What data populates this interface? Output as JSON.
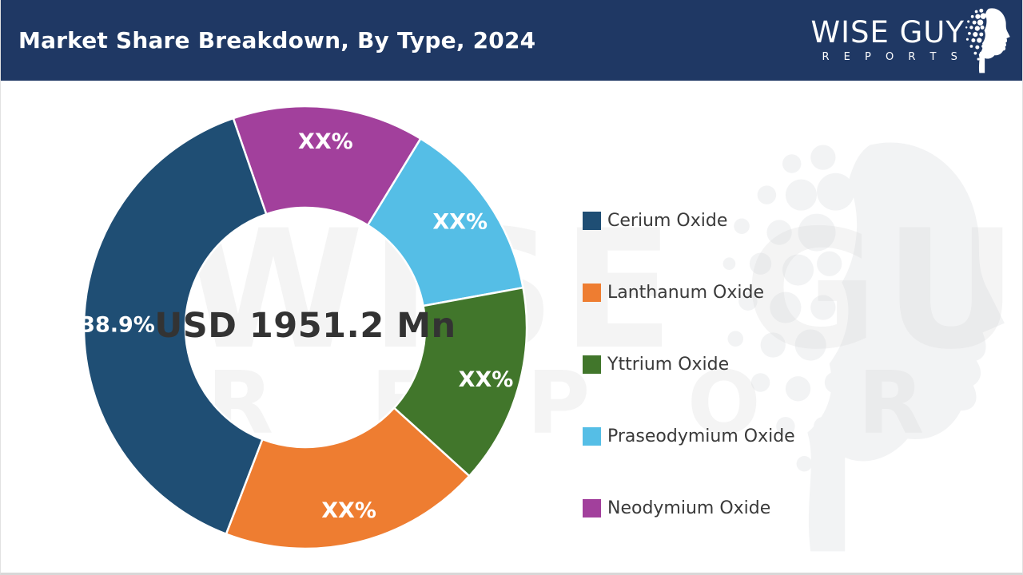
{
  "page": {
    "background": "#ffffff",
    "border_color": "#d8d8d8"
  },
  "header": {
    "background": "#1F3864",
    "title": "Market Share Breakdown, By Type, 2024",
    "title_color": "#ffffff",
    "logo": {
      "line1": "WISE GUY",
      "line2": "R E P O R T S"
    }
  },
  "watermark": {
    "line1": "WISE GUY",
    "line2": "R E P O R T S"
  },
  "chart_data": {
    "type": "pie",
    "donut": true,
    "title": "Market Share Breakdown, By Type, 2024",
    "center_label": "USD 1951.2 Mn",
    "center_label_color": "#333333",
    "slice_label_color": "#ffffff",
    "legend_position": "right",
    "start_angle_deg": 341,
    "direction": "counterclockwise",
    "slices": [
      {
        "label": "Cerium Oxide",
        "value_pct": 38.9,
        "display_label": "38.9%",
        "color": "#1F4E74"
      },
      {
        "label": "Lanthanum Oxide",
        "value_pct": 19.1,
        "display_label": "XX%",
        "color": "#EE7D31"
      },
      {
        "label": "Yttrium Oxide",
        "value_pct": 14.6,
        "display_label": "XX%",
        "color": "#41762B"
      },
      {
        "label": "Praseodymium Oxide",
        "value_pct": 13.4,
        "display_label": "XX%",
        "color": "#55BEE6"
      },
      {
        "label": "Neodymium Oxide",
        "value_pct": 14.0,
        "display_label": "XX%",
        "color": "#A2409C"
      }
    ]
  }
}
